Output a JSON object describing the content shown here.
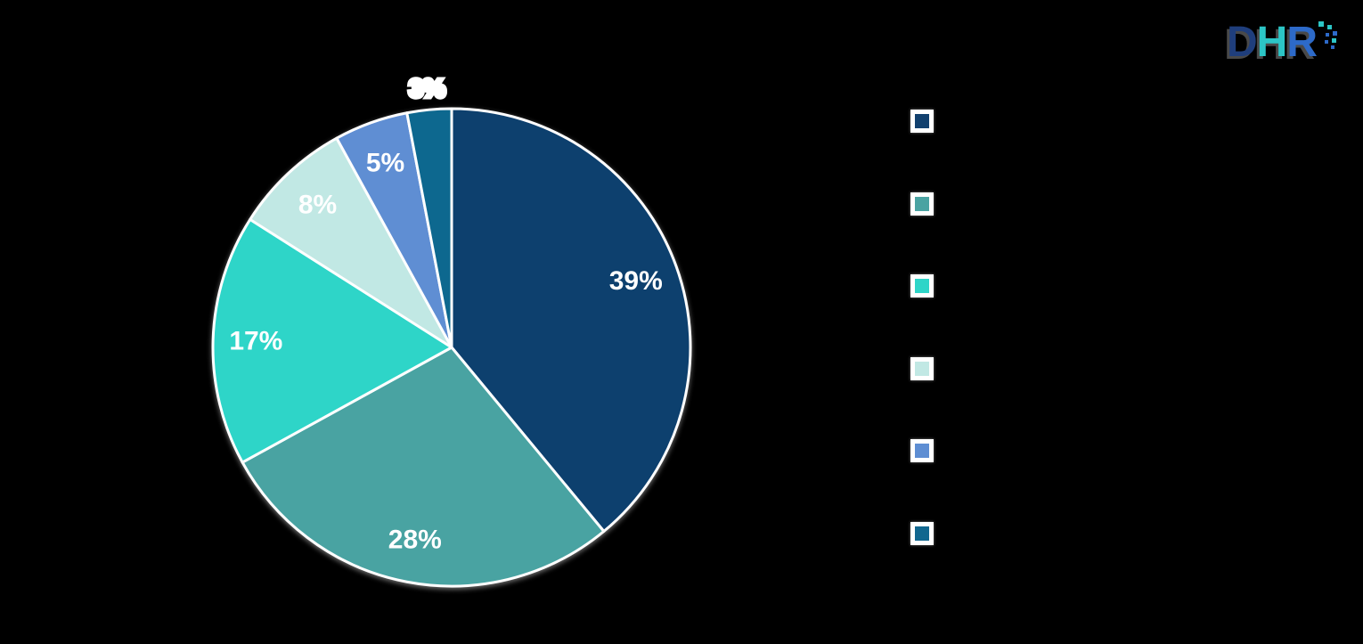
{
  "app": {
    "background_color": "#000000"
  },
  "chart_data": {
    "type": "pie",
    "title": "",
    "slices": [
      {
        "label": "39%",
        "value": 39,
        "color": "#11406E",
        "label_inside": true
      },
      {
        "label": "28%",
        "value": 28,
        "color": "#4AA3A2",
        "label_inside": true
      },
      {
        "label": "17%",
        "value": 17,
        "color": "#2ED5C8",
        "label_inside": true
      },
      {
        "label": "8%",
        "value": 8,
        "color": "#C1E8E4",
        "label_inside": true
      },
      {
        "label": "5%",
        "value": 5,
        "color": "#5E8ED3",
        "label_inside": true
      },
      {
        "label": "3%",
        "value": 3,
        "color": "#11678F",
        "label_inside": false
      }
    ],
    "start_angle_deg": 0,
    "direction": "clockwise",
    "slice_border_color": "#FFFFFF",
    "label_color": "#FFFFFF",
    "legend_position": "right",
    "legend_text_visible": false
  },
  "legend": {
    "items": [
      {
        "swatch_color": "#11406E"
      },
      {
        "swatch_color": "#4AA3A2"
      },
      {
        "swatch_color": "#2ED5C8"
      },
      {
        "swatch_color": "#C1E8E4"
      },
      {
        "swatch_color": "#5E8ED3"
      },
      {
        "swatch_color": "#11678F"
      }
    ]
  },
  "logo": {
    "letters": [
      {
        "char": "D",
        "color": "#1F3E7C"
      },
      {
        "char": "H",
        "color": "#2CC5C6"
      },
      {
        "char": "R",
        "color": "#2D6AC9"
      }
    ],
    "dot_colors": [
      "#2CC5C6",
      "#2D6AC9"
    ]
  }
}
